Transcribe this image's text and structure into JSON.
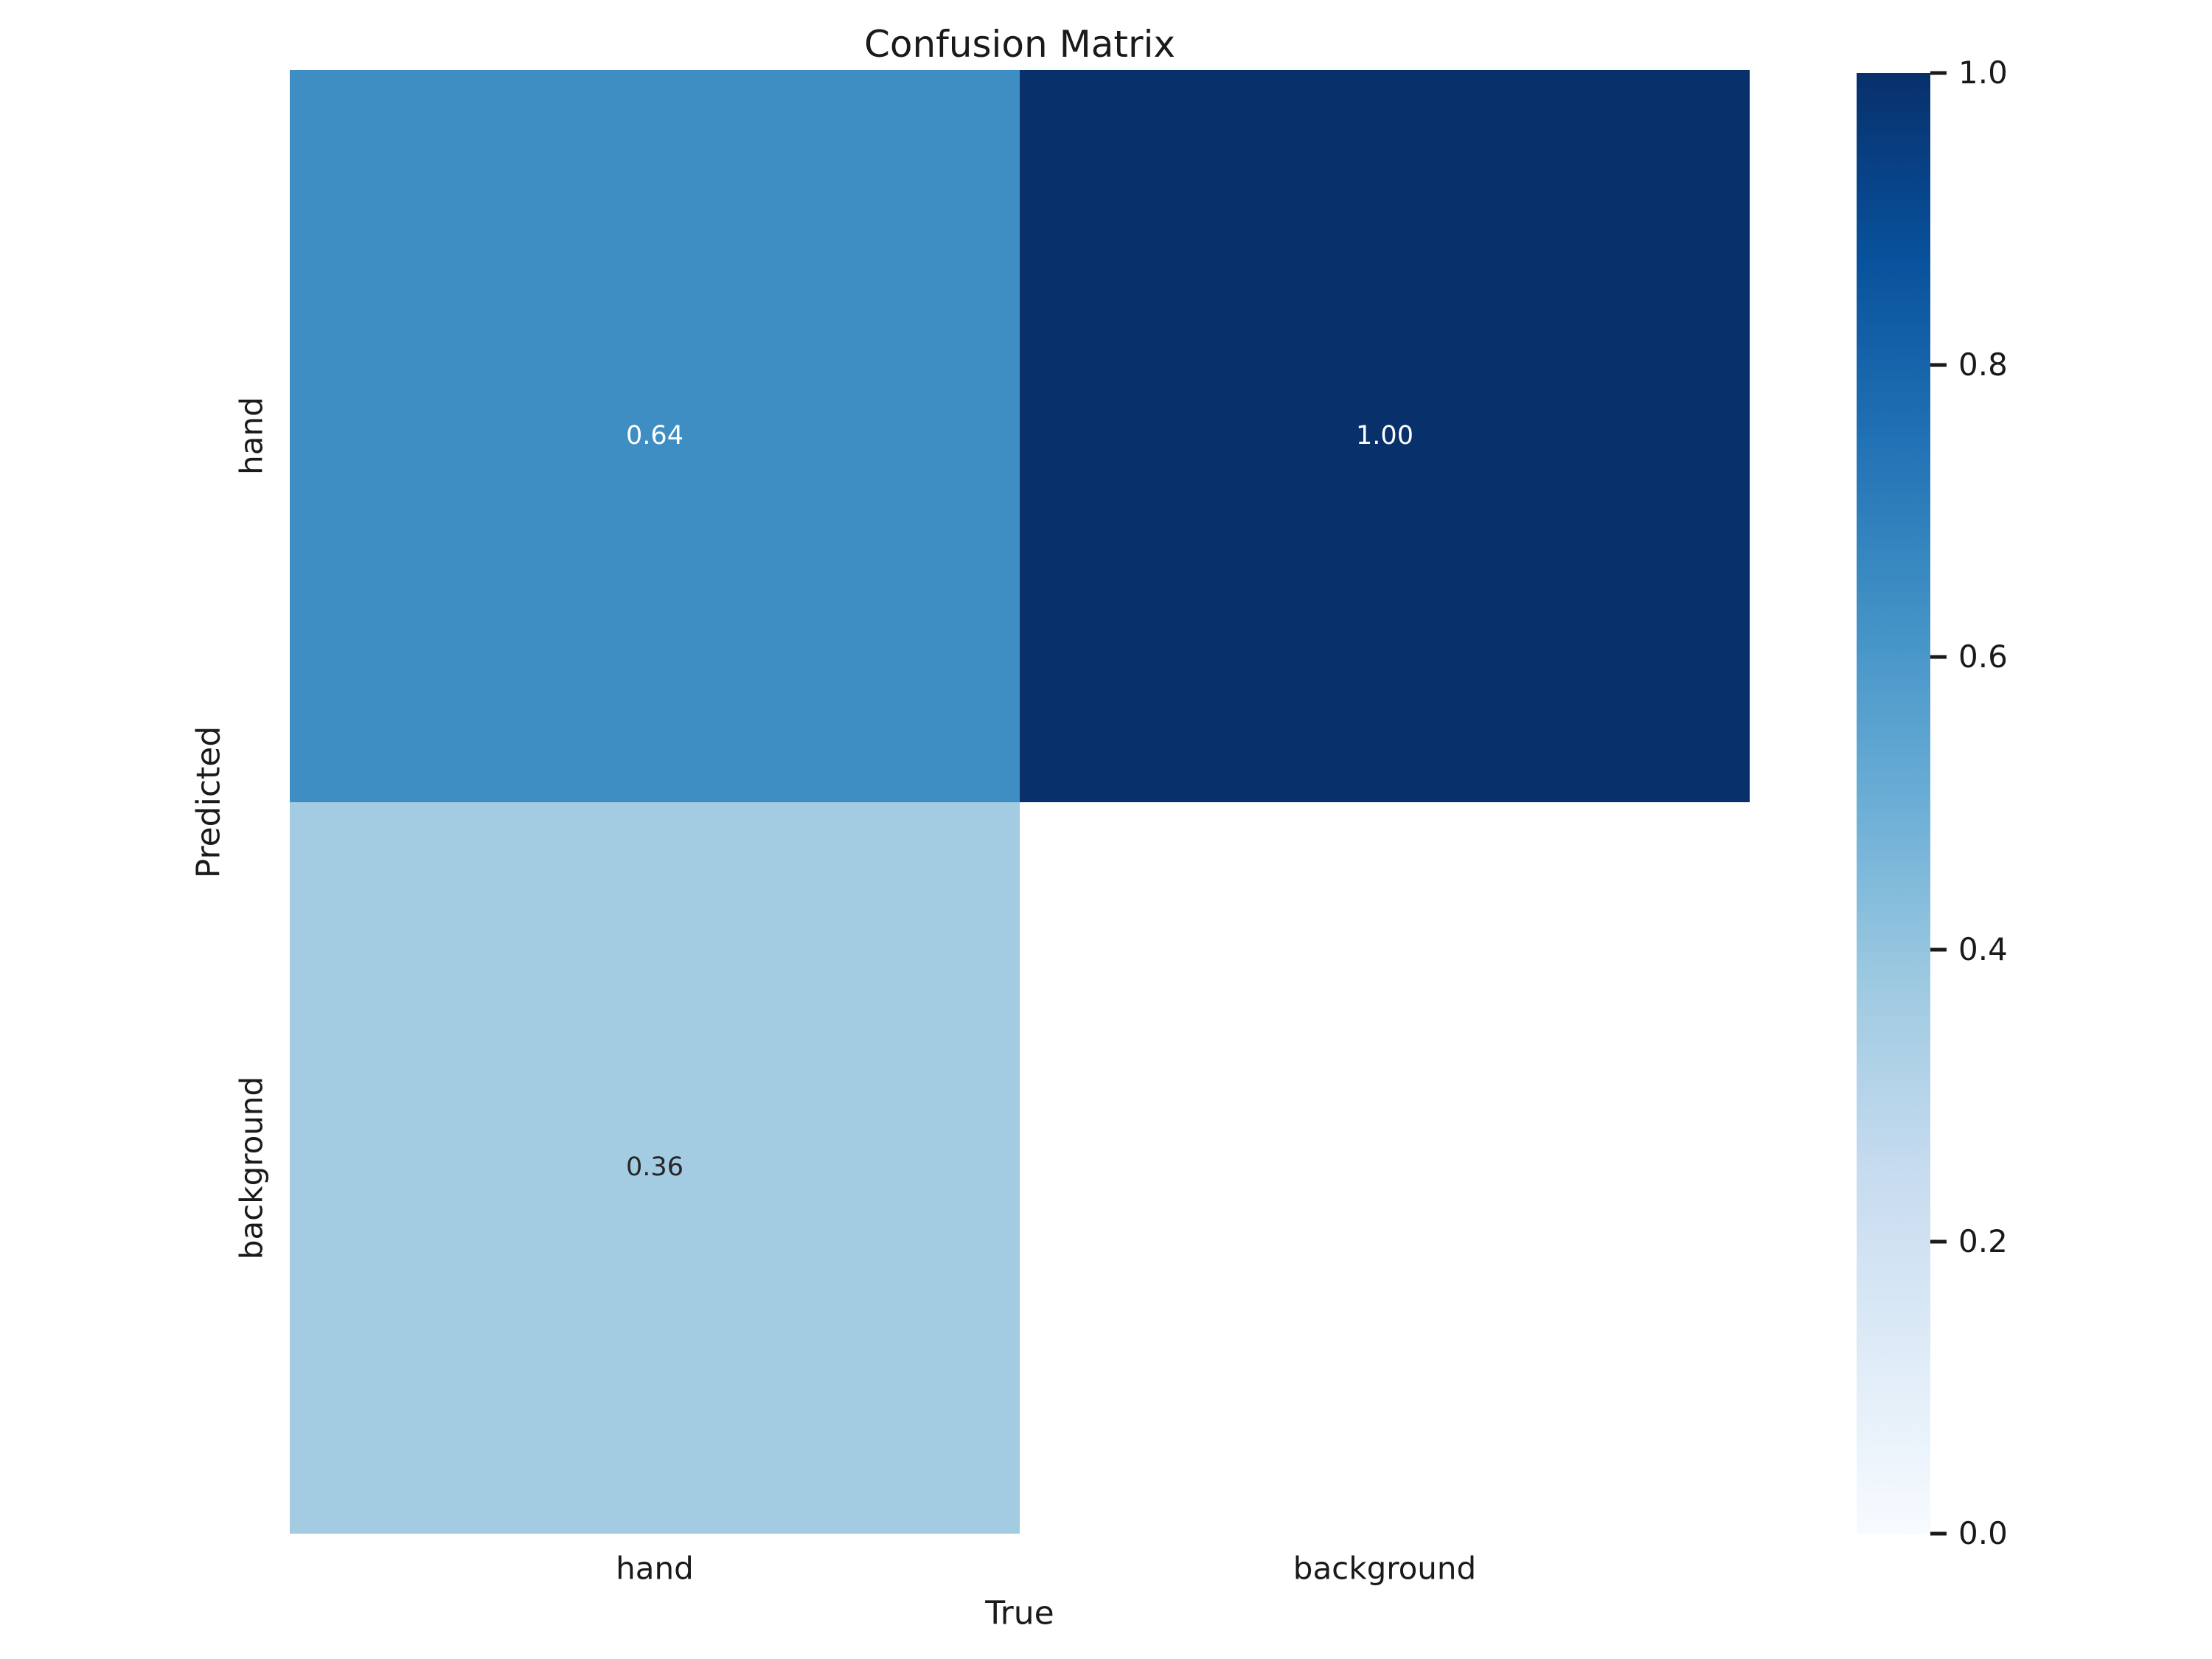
{
  "figure": {
    "title": "Confusion Matrix"
  },
  "chart_data": {
    "type": "heatmap",
    "title": "Confusion Matrix",
    "xlabel": "True",
    "ylabel": "Predicted",
    "x_categories": [
      "hand",
      "background"
    ],
    "y_categories": [
      "hand",
      "background"
    ],
    "values": [
      [
        0.64,
        1.0
      ],
      [
        0.36,
        null
      ]
    ],
    "cell_labels": [
      [
        "0.64",
        "1.00"
      ],
      [
        "0.36",
        ""
      ]
    ],
    "colormap": "Blues",
    "grid": false,
    "legend_position": "none",
    "cell_colors": [
      [
        "#3e8ec4",
        "#08306b"
      ],
      [
        "#a3cce3",
        "#ffffff"
      ]
    ],
    "cell_text_colors": [
      [
        "#ffffff",
        "#ffffff"
      ],
      [
        "#262626",
        "#262626"
      ]
    ],
    "colorbar": {
      "position": "right",
      "min": 0.0,
      "max": 1.0,
      "tick_labels": [
        "1.0",
        "0.8",
        "0.6",
        "0.4",
        "0.2",
        "0.0"
      ]
    }
  }
}
